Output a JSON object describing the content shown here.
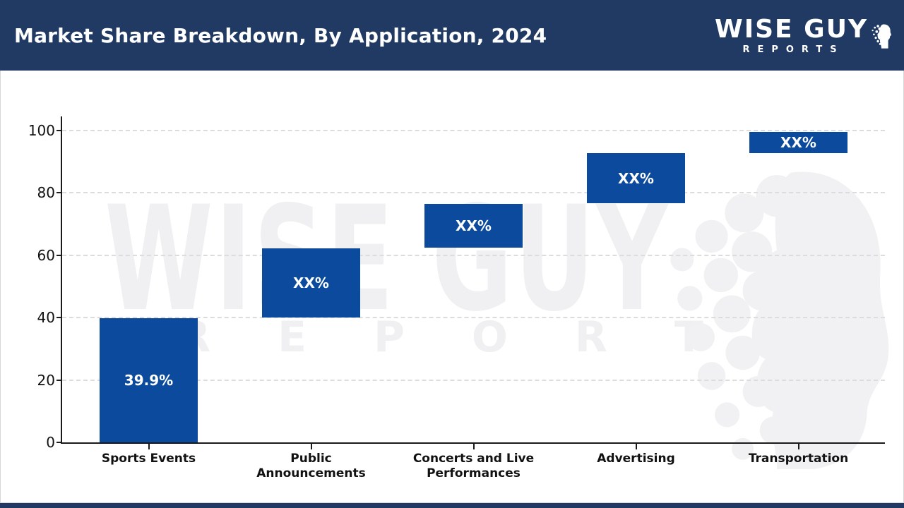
{
  "header": {
    "title": "Market Share Breakdown, By Application, 2024",
    "logo": {
      "brand_top": "WISE GUY",
      "brand_bottom": "REPORTS"
    }
  },
  "watermark": {
    "line1": "WISE GUY",
    "line2": "R E P O R T S"
  },
  "colors": {
    "header_bg": "#203a64",
    "bar_fill": "#0b4a9c",
    "axis": "#1a1a1a",
    "grid": "#dcdcdc",
    "tick_label": "#111111",
    "watermark": "#f0f0f2",
    "frame_border": "#d6d6d6"
  },
  "chart_data": {
    "type": "bar",
    "subtype": "waterfall",
    "title": "Market Share Breakdown, By Application, 2024",
    "xlabel": "",
    "ylabel": "",
    "ylim": [
      0,
      104
    ],
    "yticks": [
      0,
      20,
      40,
      60,
      80,
      100
    ],
    "grid": "horizontal-dashed",
    "legend": null,
    "categories": [
      "Sports Events",
      "Public\nAnnouncements",
      "Concerts and Live\nPerformances",
      "Advertising",
      "Transportation"
    ],
    "segments": [
      {
        "category": "Sports Events",
        "start": 0,
        "end": 39.9,
        "label": "39.9%"
      },
      {
        "category": "Public Announcements",
        "start": 40.0,
        "end": 62.3,
        "label": "XX%"
      },
      {
        "category": "Concerts and Live Performances",
        "start": 62.4,
        "end": 76.4,
        "label": "XX%"
      },
      {
        "category": "Advertising",
        "start": 76.6,
        "end": 92.7,
        "label": "XX%"
      },
      {
        "category": "Transportation",
        "start": 92.8,
        "end": 99.5,
        "label": "XX%"
      }
    ]
  }
}
